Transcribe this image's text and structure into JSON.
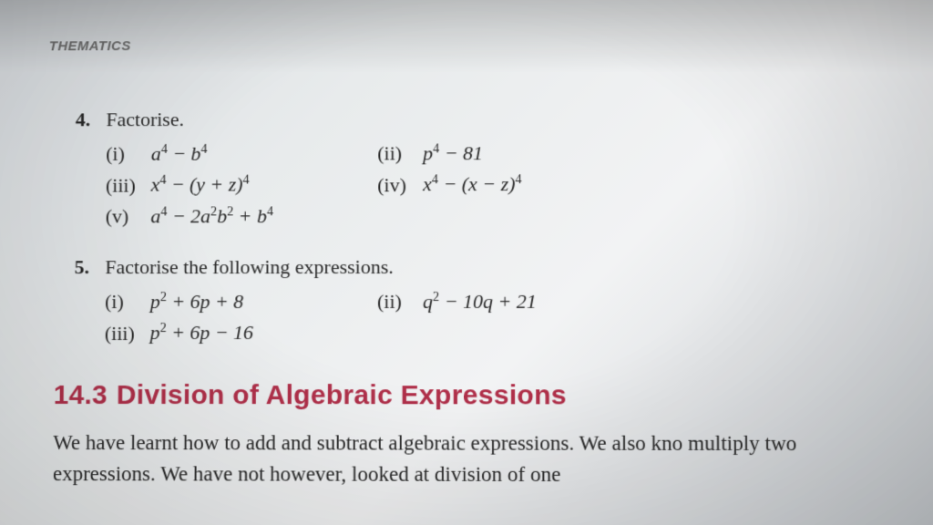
{
  "header": "THEMATICS",
  "q4": {
    "num": "4.",
    "text": "Factorise.",
    "parts": [
      {
        "n": "(i)",
        "html": "a<sup>4</sup> − b<sup>4</sup>"
      },
      {
        "n": "(ii)",
        "html": "p<sup>4</sup> − 81"
      },
      {
        "n": "(iii)",
        "html": "x<sup>4</sup> − (y + z)<sup>4</sup>"
      },
      {
        "n": "(iv)",
        "html": "x<sup>4</sup> − (x − z)<sup>4</sup>"
      },
      {
        "n": "(v)",
        "html": "a<sup>4</sup> − 2a<sup>2</sup>b<sup>2</sup> + b<sup>4</sup>"
      }
    ]
  },
  "q5": {
    "num": "5.",
    "text": "Factorise the following expressions.",
    "parts": [
      {
        "n": "(i)",
        "html": "p<sup>2</sup> + 6p + 8"
      },
      {
        "n": "(ii)",
        "html": "q<sup>2</sup> − 10q + 21"
      },
      {
        "n": "(iii)",
        "html": "p<sup>2</sup> + 6p − 16"
      }
    ]
  },
  "section": {
    "num": "14.3",
    "title": "Division of Algebraic Expressions"
  },
  "body": "We have learnt how to add and subtract algebraic expressions. We also kno multiply two expressions. We have not however, looked at division of one",
  "colors": {
    "heading": "#b0304a",
    "text": "#2a2a2a"
  },
  "fontsize": {
    "body": 23,
    "heading": 30,
    "question": 22
  }
}
